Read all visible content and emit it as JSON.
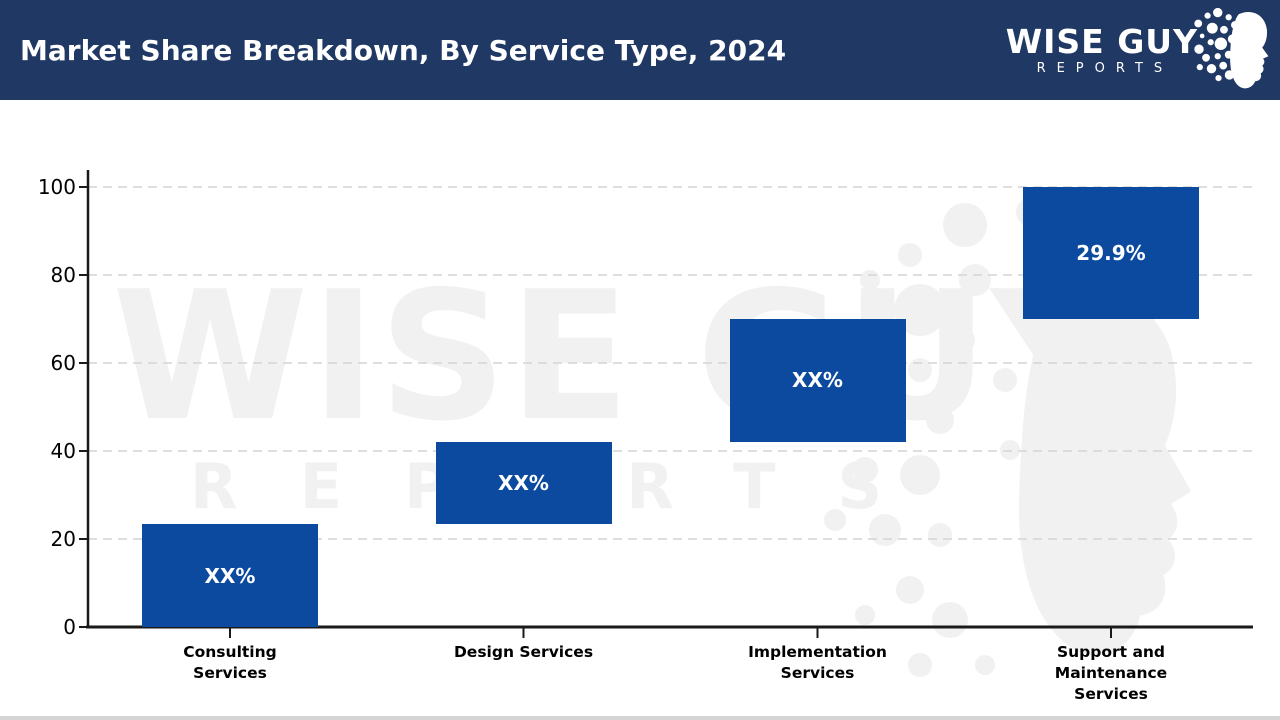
{
  "header": {
    "title": "Market Share Breakdown, By Service Type, 2024",
    "logo": {
      "name": "WISE GUY",
      "subtitle": "REPORTS"
    }
  },
  "watermark": {
    "name": "WISE GUY",
    "subtitle": "REPORTS"
  },
  "colors": {
    "header_bg": "#1f3864",
    "bar": "#0b4a9f",
    "grid": "#d9d9d9",
    "axis": "#1a1a1a",
    "watermark": "#f1f1f1",
    "footer_strip": "#d4d4d4"
  },
  "chart_data": {
    "type": "bar",
    "subtype": "waterfall",
    "title": "Market Share Breakdown, By Service Type, 2024",
    "xlabel": "",
    "ylabel": "",
    "ylim": [
      0,
      105
    ],
    "yticks": [
      0,
      20,
      40,
      60,
      80,
      100
    ],
    "grid": "horizontal-dashed",
    "legend": "none",
    "categories": [
      [
        "Consulting",
        "Services"
      ],
      [
        "Design Services"
      ],
      [
        "Implementation",
        "Services"
      ],
      [
        "Support and",
        "Maintenance",
        "Services"
      ]
    ],
    "segments": [
      {
        "category": "Consulting Services",
        "start": 0,
        "end": 23.4,
        "value": 23.4,
        "label": "XX%"
      },
      {
        "category": "Design Services",
        "start": 23.4,
        "end": 42.1,
        "value": 18.7,
        "label": "XX%"
      },
      {
        "category": "Implementation Services",
        "start": 42.1,
        "end": 70.1,
        "value": 28.0,
        "label": "XX%"
      },
      {
        "category": "Support and Maintenance Services",
        "start": 70.1,
        "end": 100,
        "value": 29.9,
        "label": "29.9%"
      }
    ]
  }
}
